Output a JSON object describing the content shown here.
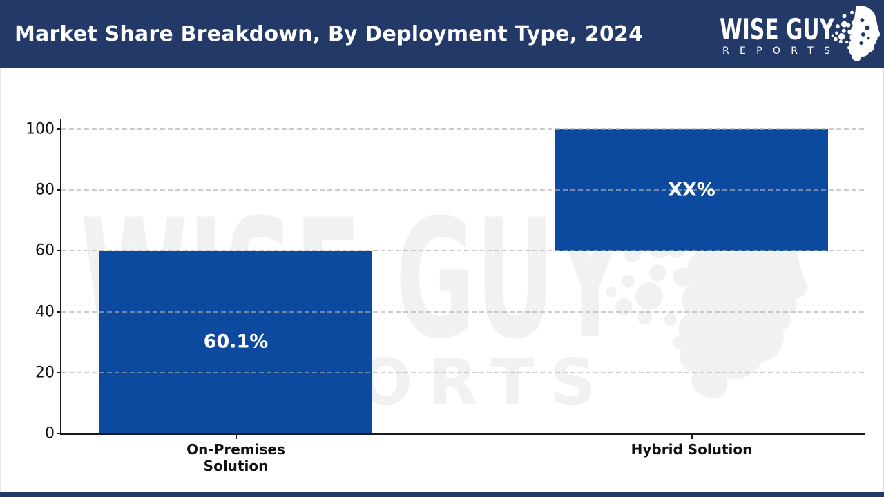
{
  "header": {
    "title": "Market Share Breakdown, By Deployment Type, 2024",
    "logo": {
      "name": "WISE GUY",
      "subtitle": "REPORTS"
    }
  },
  "watermark": {
    "line1": "WISE GUY",
    "line2": "REPORTS"
  },
  "colors": {
    "navy": "#233A69",
    "bar_blue": "#0C4A9F",
    "watermark_gray": "#F0F1F3",
    "grid_gray": "#D8D8D8"
  },
  "chart_data": {
    "type": "bar",
    "title": "Market Share Breakdown, By Deployment Type, 2024",
    "categories": [
      "On-Premises Solution",
      "Hybrid Solution"
    ],
    "categories_display": [
      "On-Premises\nSolution",
      "Hybrid Solution"
    ],
    "bars": [
      {
        "category": "On-Premises Solution",
        "label": "60.1%",
        "start": 0,
        "end": 60.1
      },
      {
        "category": "Hybrid Solution",
        "label": "XX%",
        "start": 60,
        "end": 100
      }
    ],
    "yticks": [
      0,
      20,
      40,
      60,
      80,
      100
    ],
    "ylim": [
      0,
      105
    ],
    "grid": "dashed-horizontal",
    "legend": "none",
    "xlabel": "",
    "ylabel": ""
  }
}
